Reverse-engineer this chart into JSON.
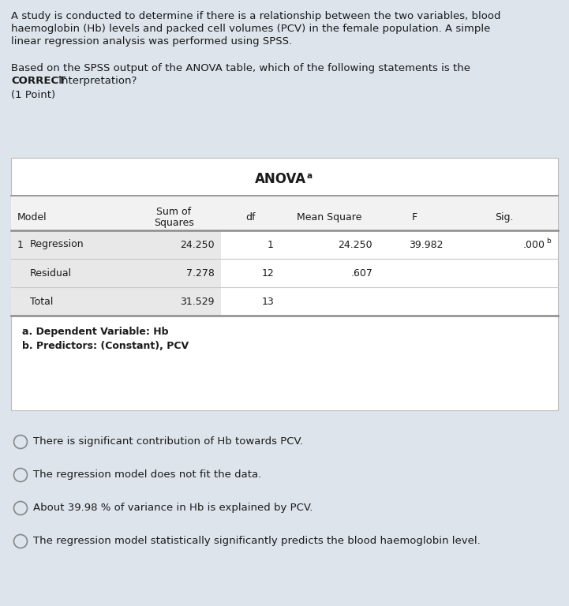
{
  "bg_color": "#dde4ec",
  "white_bg": "#ffffff",
  "table_bg": "#ffffff",
  "header_bg": "#f2f2f2",
  "row_label_bg": "#e8e8e8",
  "intro_text_line1": "A study is conducted to determine if there is a relationship between the two variables, blood",
  "intro_text_line2": "haemoglobin (Hb) levels and packed cell volumes (PCV) in the female population. A simple",
  "intro_text_line3": "linear regression analysis was performed using SPSS.",
  "question_line1": "Based on the SPSS output of the ANOVA table, which of the following statements is the",
  "question_bold": "CORRECT",
  "question_after": " interpretation?",
  "question_point": "(1 Point)",
  "table_title": "ANOVA",
  "table_super_a": "a",
  "col_model": "Model",
  "col_sumof": "Sum of",
  "col_squares": "Squares",
  "col_df": "df",
  "col_ms": "Mean Square",
  "col_f": "F",
  "col_sig": "Sig.",
  "row1_num": "1",
  "row1_label": "Regression",
  "row1_ss": "24.250",
  "row1_df": "1",
  "row1_ms": "24.250",
  "row1_f": "39.982",
  "row1_sig": ".000",
  "row1_sig_super": "b",
  "row2_label": "Residual",
  "row2_ss": "7.278",
  "row2_df": "12",
  "row2_ms": ".607",
  "row3_label": "Total",
  "row3_ss": "31.529",
  "row3_df": "13",
  "footnote_a": "a. Dependent Variable: Hb",
  "footnote_b": "b. Predictors: (Constant), PCV",
  "opt1": "There is significant contribution of Hb towards PCV.",
  "opt2": "The regression model does not fit the data.",
  "opt3": "About 39.98 % of variance in Hb is explained by PCV.",
  "opt4": "The regression model statistically significantly predicts the blood haemoglobin level.",
  "text_color": "#1a1a1a",
  "line_color_heavy": "#8a8a8a",
  "line_color_light": "#c8c8c8",
  "circle_color": "#888888"
}
